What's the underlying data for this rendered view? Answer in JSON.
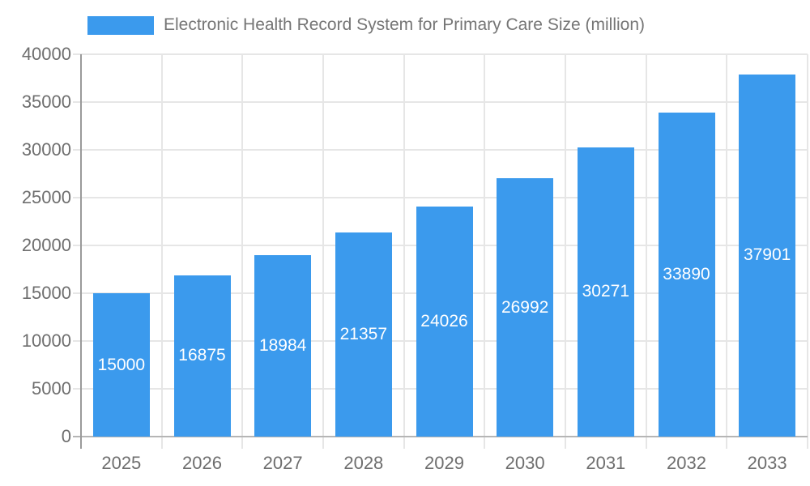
{
  "chart_data": {
    "type": "bar",
    "title": "Electronic Health Record System for Primary Care Size (million)",
    "categories": [
      "2025",
      "2026",
      "2027",
      "2028",
      "2029",
      "2030",
      "2031",
      "2032",
      "2033"
    ],
    "values": [
      15000,
      16875,
      18984,
      21357,
      24026,
      26992,
      30271,
      33890,
      37901
    ],
    "xlabel": "",
    "ylabel": "",
    "ylim": [
      0,
      40000
    ],
    "yticks": [
      0,
      5000,
      10000,
      15000,
      20000,
      25000,
      30000,
      35000,
      40000
    ],
    "grid": "horizontal-and-vertical",
    "legend_position": "top",
    "value_labels": "inside-center"
  },
  "colors": {
    "bar": "#3B9AED",
    "grid": "#e6e6e6",
    "axis_y": "#9a9a9a",
    "axis_x": "#b5b5b5",
    "text": "#6e6e6e",
    "title_text": "#757575",
    "value_label": "#ffffff",
    "background": "#ffffff"
  }
}
